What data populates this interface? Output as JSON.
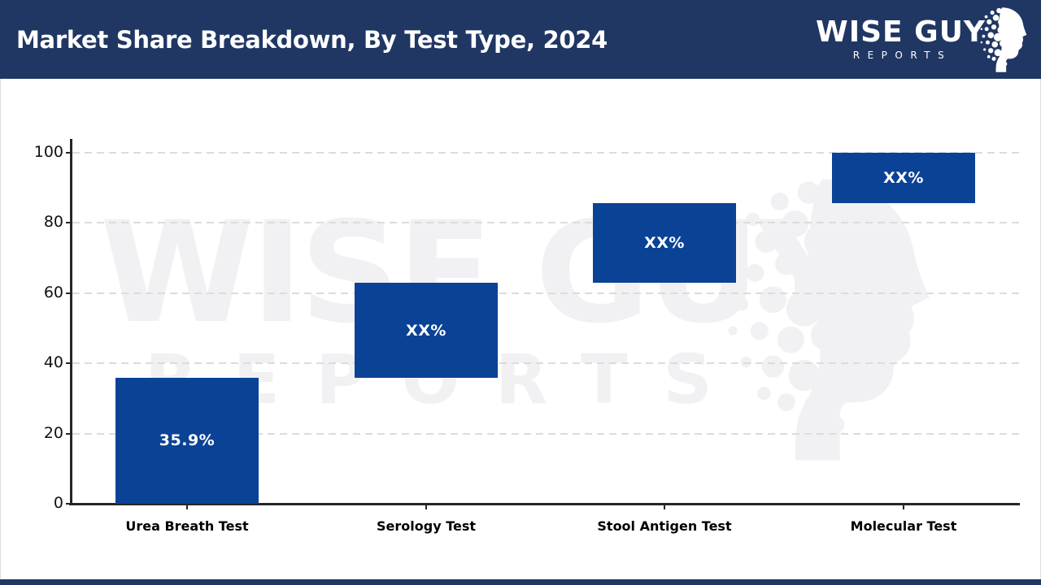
{
  "header": {
    "title": "Market Share Breakdown, By Test Type, 2024",
    "brand": {
      "name": "WISE GUY",
      "sub": "REPORTS",
      "face_icon": "dotted-head-profile-icon"
    }
  },
  "watermark": {
    "line1": "WISE GUY",
    "line2": "REPORTS",
    "face_icon": "dotted-head-profile-icon"
  },
  "colors": {
    "header_bg": "#203764",
    "bar": "#0a4296",
    "grid": "#dcdcdc",
    "axis": "#262626",
    "watermark": "#f1f1f4",
    "bar_label_text": "#ffffff"
  },
  "chart_data": {
    "type": "bar",
    "subtype": "floating-waterfall",
    "title": "Market Share Breakdown, By Test Type, 2024",
    "categories": [
      "Urea Breath Test",
      "Serology Test",
      "Stool Antigen Test",
      "Molecular Test"
    ],
    "bars": [
      {
        "category": "Urea Breath Test",
        "start": 0,
        "end": 35.9,
        "label": "35.9%"
      },
      {
        "category": "Serology Test",
        "start": 35.9,
        "end": 62.9,
        "label": "XX%"
      },
      {
        "category": "Stool Antigen Test",
        "start": 62.9,
        "end": 85.6,
        "label": "XX%"
      },
      {
        "category": "Molecular Test",
        "start": 85.6,
        "end": 100,
        "label": "XX%"
      }
    ],
    "yticks": [
      0,
      20,
      40,
      60,
      80,
      100
    ],
    "ylim": [
      0,
      104
    ],
    "xlabel": "",
    "ylabel": "",
    "grid": "horizontal-dashed",
    "legend": "none"
  }
}
